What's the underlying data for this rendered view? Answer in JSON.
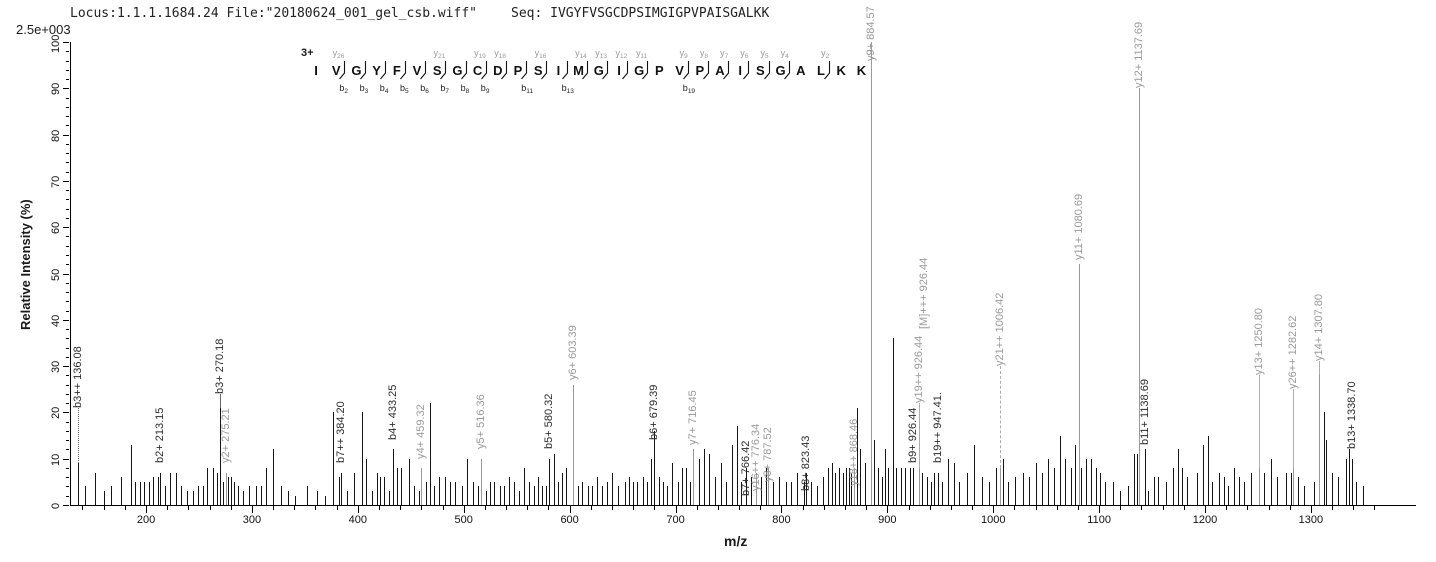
{
  "header": {
    "locus_file": "Locus:1.1.1.1684.24 File:\"20180624_001_gel_csb.wiff\"",
    "seq_label": "Seq: IVGYFVSGCDPSIMGIGPVPAISGALKK",
    "intensity_scale": "2.5e+003"
  },
  "sequence": {
    "charge": "3+",
    "residues": [
      "I",
      "V",
      "G",
      "Y",
      "F",
      "V",
      "S",
      "G",
      "C",
      "D",
      "P",
      "S",
      "I",
      "M",
      "G",
      "I",
      "G",
      "P",
      "V",
      "P",
      "A",
      "I",
      "S",
      "G",
      "A",
      "L",
      "K",
      "K"
    ],
    "y_ions": [
      {
        "after": 2,
        "n": "26"
      },
      {
        "after": 7,
        "n": "21"
      },
      {
        "after": 9,
        "n": "19"
      },
      {
        "after": 10,
        "n": "18"
      },
      {
        "after": 12,
        "n": "16"
      },
      {
        "after": 14,
        "n": "14"
      },
      {
        "after": 15,
        "n": "13"
      },
      {
        "after": 16,
        "n": "12"
      },
      {
        "after": 17,
        "n": "11"
      },
      {
        "after": 19,
        "n": "9"
      },
      {
        "after": 20,
        "n": "8"
      },
      {
        "after": 21,
        "n": "7"
      },
      {
        "after": 22,
        "n": "6"
      },
      {
        "after": 23,
        "n": "5"
      },
      {
        "after": 24,
        "n": "4"
      },
      {
        "after": 26,
        "n": "2"
      }
    ],
    "b_ions": [
      {
        "after": 2,
        "n": "2"
      },
      {
        "after": 3,
        "n": "3"
      },
      {
        "after": 4,
        "n": "4"
      },
      {
        "after": 5,
        "n": "5"
      },
      {
        "after": 6,
        "n": "6"
      },
      {
        "after": 7,
        "n": "7"
      },
      {
        "after": 8,
        "n": "8"
      },
      {
        "after": 9,
        "n": "9"
      },
      {
        "after": 11,
        "n": "11"
      },
      {
        "after": 13,
        "n": "13"
      },
      {
        "after": 19,
        "n": "19"
      }
    ]
  },
  "chart_data": {
    "type": "bar",
    "subtype": "ms2-centroid-mass-spectrum",
    "title": "",
    "xlabel": "m/z",
    "ylabel": "Relative Intensity (%)",
    "x_range": [
      130,
      1370
    ],
    "y_range": [
      0,
      100
    ],
    "y_full_scale_counts": "2.5e+003",
    "x_major_ticks": [
      200,
      300,
      400,
      500,
      600,
      700,
      800,
      900,
      1000,
      1100,
      1200,
      1300
    ],
    "x_minor_step": 20,
    "y_major_step": 10,
    "y_minor_step": 2,
    "grid": false,
    "colors": {
      "b_ion": "#151515",
      "y_ion": "#9a9a9a"
    },
    "labeled_peaks": [
      {
        "mz": 136.08,
        "pct": 9,
        "ion": "b",
        "label": "b3++ 136.08",
        "label_from": 21,
        "leader": "dotted"
      },
      {
        "mz": 213.15,
        "pct": 7,
        "ion": "b",
        "label": "b2+ 213.15",
        "label_from": 9
      },
      {
        "mz": 270.18,
        "pct": 21,
        "ion": "b",
        "label": "b3+ 270.18",
        "label_from": 24,
        "leader": "solid"
      },
      {
        "mz": 275.21,
        "pct": 7,
        "ion": "y",
        "label": "y2+ 275.21",
        "label_from": 9
      },
      {
        "mz": 384.2,
        "pct": 7,
        "ion": "b",
        "label": "b7++ 384.20",
        "label_from": 9
      },
      {
        "mz": 433.25,
        "pct": 12,
        "ion": "b",
        "label": "b4+ 433.25",
        "label_from": 14
      },
      {
        "mz": 459.32,
        "pct": 8,
        "ion": "y",
        "label": "y4+ 459.32",
        "label_from": 10
      },
      {
        "mz": 516.36,
        "pct": 10,
        "ion": "y",
        "label": "y5+ 516.36",
        "label_from": 12
      },
      {
        "mz": 580.32,
        "pct": 10,
        "ion": "b",
        "label": "b5+ 580.32",
        "label_from": 12
      },
      {
        "mz": 603.39,
        "pct": 26,
        "ion": "y",
        "label": "y6+ 603.39",
        "label_from": 27
      },
      {
        "mz": 679.39,
        "pct": 16,
        "ion": "b",
        "label": "b6+ 679.39",
        "label_from": 14
      },
      {
        "mz": 716.45,
        "pct": 12,
        "ion": "y",
        "label": "y7+ 716.45",
        "label_from": 13
      },
      {
        "mz": 766.42,
        "pct": 8,
        "ion": "b",
        "label": "b7+ 766.42",
        "label_from": 2
      },
      {
        "mz": 776.34,
        "pct": 7,
        "ion": "y",
        "label": "y16++ 776.34",
        "label_from": 3
      },
      {
        "mz": 787.52,
        "pct": 8,
        "ion": "y",
        "label": "y8+ 787.52",
        "label_from": 5
      },
      {
        "mz": 823.43,
        "pct": 7,
        "ion": "b",
        "label": "b8+ 823.43",
        "label_from": 3
      },
      {
        "mz": 868.46,
        "pct": 8,
        "ion": "y",
        "label": "y18++ 868.46",
        "label_from": 4
      },
      {
        "mz": 884.57,
        "pct": 100,
        "ion": "y",
        "label": "y9+ 884.57",
        "label_from": 96
      },
      {
        "mz": 926.44,
        "x": 924.5,
        "pct": 8,
        "ion": "b",
        "label": "b9+ 926.44",
        "label_from": 9
      },
      {
        "mz": 926.44,
        "x": 929.5,
        "pct": 8,
        "ion": "y",
        "label": "y19++ 926.44",
        "label_from": 22,
        "leader": "solid"
      },
      {
        "mz": 926.44,
        "x": 934.5,
        "pct": 0,
        "ion": "y",
        "label": "[M]+++ 926.44",
        "label_from": 38
      },
      {
        "mz": 947.41,
        "pct": 7,
        "ion": "b",
        "label": "b19++ 947.41.",
        "label_from": 9
      },
      {
        "mz": 1006.42,
        "pct": 8,
        "ion": "y",
        "label": "y21++ 1006.42",
        "label_from": 30,
        "leader": "dashed"
      },
      {
        "mz": 1080.69,
        "pct": 52,
        "ion": "y",
        "label": "y11+ 1080.69",
        "label_from": 53
      },
      {
        "mz": 1137.69,
        "pct": 90,
        "ion": "y",
        "label": "y12+ 1137.69",
        "label_from": 90
      },
      {
        "mz": 1138.69,
        "x": 1143,
        "pct": 12,
        "ion": "b",
        "label": "b11+ 1138.69",
        "label_from": 13
      },
      {
        "mz": 1250.8,
        "pct": 8,
        "ion": "y",
        "label": "y13+ 1250.80",
        "label_from": 28,
        "leader": "solid"
      },
      {
        "mz": 1282.62,
        "pct": 8,
        "ion": "y",
        "label": "y26++ 1282.62",
        "label_from": 25,
        "leader": "solid"
      },
      {
        "mz": 1307.8,
        "pct": 28,
        "ion": "y",
        "label": "y14+ 1307.80",
        "label_from": 31,
        "leader": "solid"
      },
      {
        "mz": 1338.7,
        "pct": 10,
        "ion": "b",
        "label": "b13+ 1338.70",
        "label_from": 12
      }
    ],
    "background_peaks": [
      [
        142,
        4
      ],
      [
        152,
        7
      ],
      [
        160,
        3
      ],
      [
        167,
        4
      ],
      [
        176,
        6
      ],
      [
        186,
        13
      ],
      [
        190,
        5
      ],
      [
        194,
        5
      ],
      [
        198,
        5
      ],
      [
        203,
        5
      ],
      [
        207,
        6
      ],
      [
        211,
        6
      ],
      [
        218,
        4
      ],
      [
        223,
        7
      ],
      [
        228,
        7
      ],
      [
        233,
        4
      ],
      [
        239,
        3
      ],
      [
        244,
        3
      ],
      [
        249,
        4
      ],
      [
        254,
        4
      ],
      [
        258,
        8
      ],
      [
        263,
        8
      ],
      [
        267,
        7
      ],
      [
        273,
        5
      ],
      [
        277,
        6
      ],
      [
        280,
        6
      ],
      [
        283,
        5
      ],
      [
        287,
        4
      ],
      [
        292,
        3
      ],
      [
        297,
        4
      ],
      [
        304,
        4
      ],
      [
        309,
        4
      ],
      [
        313,
        8
      ],
      [
        320,
        12
      ],
      [
        327,
        4
      ],
      [
        334,
        3
      ],
      [
        341,
        2
      ],
      [
        352,
        4
      ],
      [
        361,
        3
      ],
      [
        369,
        2
      ],
      [
        377,
        20
      ],
      [
        382,
        6
      ],
      [
        390,
        3
      ],
      [
        396,
        7
      ],
      [
        404,
        20
      ],
      [
        408,
        10
      ],
      [
        413,
        3
      ],
      [
        418,
        7
      ],
      [
        421,
        6
      ],
      [
        425,
        6
      ],
      [
        429,
        3
      ],
      [
        437,
        8
      ],
      [
        441,
        8
      ],
      [
        448,
        10
      ],
      [
        453,
        4
      ],
      [
        458,
        3
      ],
      [
        464,
        5
      ],
      [
        468,
        22
      ],
      [
        472,
        4
      ],
      [
        477,
        6
      ],
      [
        482,
        6
      ],
      [
        487,
        5
      ],
      [
        492,
        5
      ],
      [
        498,
        4
      ],
      [
        503,
        10
      ],
      [
        509,
        5
      ],
      [
        513,
        4
      ],
      [
        521,
        3
      ],
      [
        525,
        5
      ],
      [
        529,
        5
      ],
      [
        534,
        4
      ],
      [
        538,
        4
      ],
      [
        543,
        6
      ],
      [
        547,
        5
      ],
      [
        552,
        3
      ],
      [
        557,
        8
      ],
      [
        562,
        5
      ],
      [
        566,
        4
      ],
      [
        570,
        6
      ],
      [
        574,
        4
      ],
      [
        578,
        4
      ],
      [
        585,
        11
      ],
      [
        589,
        5
      ],
      [
        593,
        7
      ],
      [
        597,
        8
      ],
      [
        608,
        4
      ],
      [
        612,
        5
      ],
      [
        617,
        4
      ],
      [
        621,
        4
      ],
      [
        626,
        6
      ],
      [
        631,
        4
      ],
      [
        635,
        5
      ],
      [
        640,
        7
      ],
      [
        646,
        4
      ],
      [
        652,
        5
      ],
      [
        656,
        6
      ],
      [
        660,
        5
      ],
      [
        664,
        5
      ],
      [
        669,
        6
      ],
      [
        673,
        5
      ],
      [
        677,
        10
      ],
      [
        684,
        6
      ],
      [
        688,
        5
      ],
      [
        692,
        4
      ],
      [
        697,
        9
      ],
      [
        702,
        5
      ],
      [
        706,
        8
      ],
      [
        710,
        8
      ],
      [
        714,
        5
      ],
      [
        722,
        10
      ],
      [
        727,
        12
      ],
      [
        732,
        11
      ],
      [
        737,
        6
      ],
      [
        743,
        9
      ],
      [
        748,
        5
      ],
      [
        753,
        13
      ],
      [
        758,
        17
      ],
      [
        762,
        5
      ],
      [
        771,
        6
      ],
      [
        781,
        6
      ],
      [
        785,
        8
      ],
      [
        792,
        5
      ],
      [
        798,
        6
      ],
      [
        804,
        5
      ],
      [
        809,
        5
      ],
      [
        815,
        7
      ],
      [
        821,
        5
      ],
      [
        828,
        5
      ],
      [
        834,
        4
      ],
      [
        839,
        6
      ],
      [
        844,
        8
      ],
      [
        848,
        9
      ],
      [
        851,
        7
      ],
      [
        854,
        8
      ],
      [
        858,
        7
      ],
      [
        861,
        8
      ],
      [
        864,
        8
      ],
      [
        866,
        7
      ],
      [
        871,
        21
      ],
      [
        874,
        12
      ],
      [
        879,
        9
      ],
      [
        887,
        14
      ],
      [
        891,
        8
      ],
      [
        895,
        6
      ],
      [
        898,
        12
      ],
      [
        901,
        8
      ],
      [
        905,
        36
      ],
      [
        908,
        8
      ],
      [
        913,
        8
      ],
      [
        917,
        8
      ],
      [
        921,
        8
      ],
      [
        933,
        7
      ],
      [
        937,
        6
      ],
      [
        941,
        5
      ],
      [
        944,
        7
      ],
      [
        952,
        5
      ],
      [
        957,
        10
      ],
      [
        963,
        9
      ],
      [
        968,
        5
      ],
      [
        975,
        7
      ],
      [
        982,
        13
      ],
      [
        989,
        6
      ],
      [
        996,
        5
      ],
      [
        1003,
        8
      ],
      [
        1009,
        10
      ],
      [
        1014,
        5
      ],
      [
        1021,
        6
      ],
      [
        1028,
        7
      ],
      [
        1034,
        6
      ],
      [
        1040,
        9
      ],
      [
        1046,
        7
      ],
      [
        1052,
        10
      ],
      [
        1057,
        8
      ],
      [
        1063,
        15
      ],
      [
        1068,
        10
      ],
      [
        1073,
        8
      ],
      [
        1077,
        13
      ],
      [
        1083,
        8
      ],
      [
        1088,
        10
      ],
      [
        1092,
        10
      ],
      [
        1097,
        8
      ],
      [
        1101,
        7
      ],
      [
        1106,
        5
      ],
      [
        1113,
        5
      ],
      [
        1120,
        3
      ],
      [
        1127,
        4
      ],
      [
        1133,
        11
      ],
      [
        1136,
        11
      ],
      [
        1146,
        3
      ],
      [
        1152,
        6
      ],
      [
        1156,
        6
      ],
      [
        1163,
        5
      ],
      [
        1170,
        8
      ],
      [
        1174,
        12
      ],
      [
        1178,
        8
      ],
      [
        1183,
        6
      ],
      [
        1192,
        7
      ],
      [
        1198,
        13
      ],
      [
        1203,
        15
      ],
      [
        1207,
        5
      ],
      [
        1213,
        7
      ],
      [
        1218,
        6
      ],
      [
        1222,
        4
      ],
      [
        1227,
        8
      ],
      [
        1232,
        6
      ],
      [
        1237,
        5
      ],
      [
        1243,
        7
      ],
      [
        1256,
        7
      ],
      [
        1262,
        10
      ],
      [
        1268,
        6
      ],
      [
        1276,
        7
      ],
      [
        1281,
        7
      ],
      [
        1288,
        6
      ],
      [
        1293,
        4
      ],
      [
        1303,
        5
      ],
      [
        1312,
        20
      ],
      [
        1314,
        14
      ],
      [
        1320,
        7
      ],
      [
        1326,
        6
      ],
      [
        1333,
        10
      ],
      [
        1336,
        12
      ],
      [
        1343,
        5
      ],
      [
        1349,
        4
      ]
    ]
  }
}
